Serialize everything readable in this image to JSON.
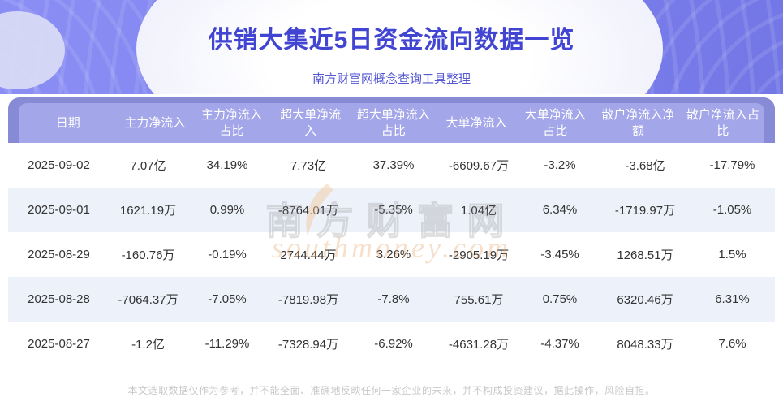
{
  "banner": {
    "title": "供销大集近5日资金流向数据一览",
    "subtitle": "南方财富网概念查询工具整理"
  },
  "chart_data": {
    "type": "table",
    "title": "供销大集近5日资金流向数据一览",
    "columns": [
      "日期",
      "主力净流入",
      "主力净流入占比",
      "超大单净流入",
      "超大单净流入占比",
      "大单净流入",
      "大单净流入占比",
      "散户净流入净额",
      "散户净流入占比"
    ],
    "rows": [
      [
        "2025-09-02",
        "7.07亿",
        "34.19%",
        "7.73亿",
        "37.39%",
        "-6609.67万",
        "-3.2%",
        "-3.68亿",
        "-17.79%"
      ],
      [
        "2025-09-01",
        "1621.19万",
        "0.99%",
        "-8764.01万",
        "-5.35%",
        "1.04亿",
        "6.34%",
        "-1719.97万",
        "-1.05%"
      ],
      [
        "2025-08-29",
        "-160.76万",
        "-0.19%",
        "2744.44万",
        "3.26%",
        "-2905.19万",
        "-3.45%",
        "1268.51万",
        "1.5%"
      ],
      [
        "2025-08-28",
        "-7064.37万",
        "-7.05%",
        "-7819.98万",
        "-7.8%",
        "755.61万",
        "0.75%",
        "6320.46万",
        "6.31%"
      ],
      [
        "2025-08-27",
        "-1.2亿",
        "-11.29%",
        "-7328.94万",
        "-6.92%",
        "-4631.28万",
        "-4.37%",
        "8048.33万",
        "7.6%"
      ]
    ]
  },
  "watermark": {
    "text_cn": "南方财富网",
    "text_en": "southmoney.com"
  },
  "footer": {
    "disclaimer": "本文选取数据仅作为参考，并不能全面、准确地反映任何一家企业的未来，并不构成投资建议，据此操作，风险自担。"
  },
  "colors": {
    "banner_purple": "#7e82ee",
    "title_text": "#4145d2",
    "subtitle_text": "#5357d2",
    "header_band": "#a3a6e8",
    "header_band_dark": "#878bd6",
    "row_stripe": "#edf1f9",
    "cell_text": "#333333",
    "disclaimer_text": "#c9c9c9"
  }
}
